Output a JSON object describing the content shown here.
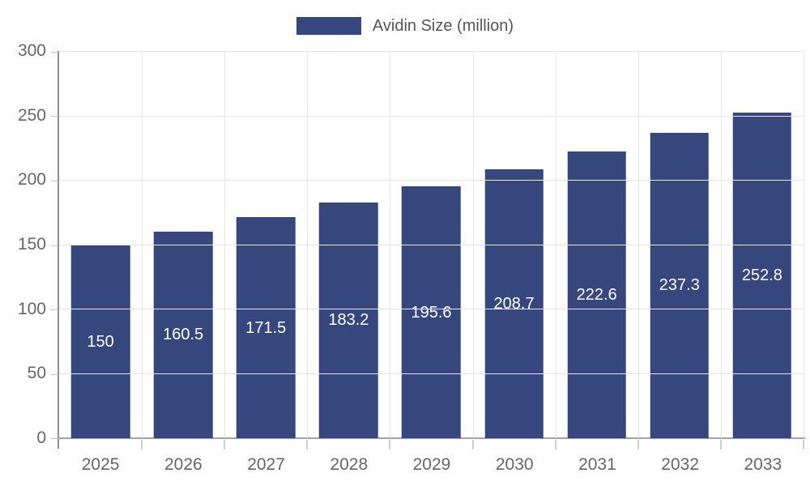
{
  "chart_data": {
    "type": "bar",
    "title": "",
    "categories": [
      "2025",
      "2026",
      "2027",
      "2028",
      "2029",
      "2030",
      "2031",
      "2032",
      "2033"
    ],
    "series": [
      {
        "name": "Avidin Size (million)",
        "values": [
          150,
          160.5,
          171.5,
          183.2,
          195.6,
          208.7,
          222.6,
          237.3,
          252.8
        ],
        "color": "#36477d"
      }
    ],
    "value_labels": [
      "150",
      "160.5",
      "171.5",
      "183.2",
      "195.6",
      "208.7",
      "222.6",
      "237.3",
      "252.8"
    ],
    "value_label_color": "#ffffff",
    "xlabel": "",
    "ylabel": "",
    "ylim": [
      0,
      300
    ],
    "yticks": [
      0,
      50,
      100,
      150,
      200,
      250,
      300
    ],
    "grid": true,
    "legend_position": "top-center",
    "axis_text_color": "#666666",
    "legend_text_color": "#555555",
    "background_color": "#ffffff"
  }
}
